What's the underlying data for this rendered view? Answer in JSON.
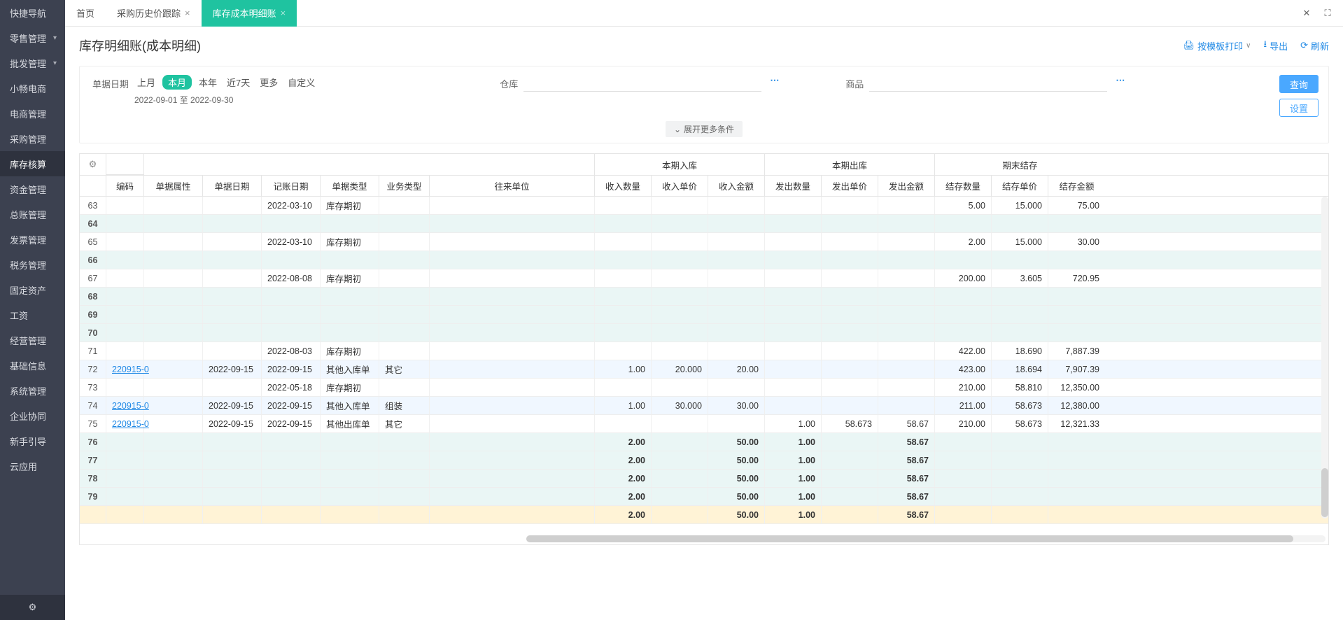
{
  "sidebar": {
    "items": [
      {
        "label": "快捷导航",
        "caret": false
      },
      {
        "label": "零售管理",
        "caret": true
      },
      {
        "label": "批发管理",
        "caret": true
      },
      {
        "label": "小畅电商",
        "caret": false
      },
      {
        "label": "电商管理",
        "caret": false
      },
      {
        "label": "采购管理",
        "caret": false
      },
      {
        "label": "库存核算",
        "caret": false,
        "active": true
      },
      {
        "label": "资金管理",
        "caret": false
      },
      {
        "label": "总账管理",
        "caret": false
      },
      {
        "label": "发票管理",
        "caret": false
      },
      {
        "label": "税务管理",
        "caret": false
      },
      {
        "label": "固定资产",
        "caret": false
      },
      {
        "label": "工资",
        "caret": false
      },
      {
        "label": "经营管理",
        "caret": false
      },
      {
        "label": "基础信息",
        "caret": false
      },
      {
        "label": "系统管理",
        "caret": false
      },
      {
        "label": "企业协同",
        "caret": false
      },
      {
        "label": "新手引导",
        "caret": false
      },
      {
        "label": "云应用",
        "caret": false
      }
    ]
  },
  "tabs": [
    {
      "label": "首页",
      "closable": false
    },
    {
      "label": "采购历史价跟踪",
      "closable": true
    },
    {
      "label": "库存成本明细账",
      "closable": true,
      "active": true
    }
  ],
  "page_title": "库存明细账(成本明细)",
  "head_actions": {
    "print": "按模板打印",
    "export": "导出",
    "refresh": "刷新"
  },
  "filters": {
    "date_label": "单据日期",
    "date_opts": [
      "上月",
      "本月",
      "本年",
      "近7天",
      "更多",
      "自定义"
    ],
    "date_opt_active": 1,
    "date_range": "2022-09-01 至 2022-09-30",
    "warehouse_label": "仓库",
    "goods_label": "商品",
    "query_btn": "查询",
    "settings_btn": "设置",
    "expand_label": "展开更多条件"
  },
  "table": {
    "group_headers": [
      "本期入库",
      "本期出库",
      "期末结存"
    ],
    "columns": [
      "编码",
      "单据属性",
      "单据日期",
      "记账日期",
      "单据类型",
      "业务类型",
      "往来单位",
      "收入数量",
      "收入单价",
      "收入金额",
      "发出数量",
      "发出单价",
      "发出金额",
      "结存数量",
      "结存单价",
      "结存金额"
    ],
    "rows": [
      {
        "idx": "63",
        "date2": "2022-03-10",
        "type": "库存期初",
        "q": "5.00",
        "p": "15.000",
        "a": "75.00"
      },
      {
        "idx": "64",
        "sum": true
      },
      {
        "idx": "65",
        "date2": "2022-03-10",
        "type": "库存期初",
        "q": "2.00",
        "p": "15.000",
        "a": "30.00"
      },
      {
        "idx": "66",
        "sum": true
      },
      {
        "idx": "67",
        "date2": "2022-08-08",
        "type": "库存期初",
        "q": "200.00",
        "p": "3.605",
        "a": "720.95"
      },
      {
        "idx": "68",
        "sum": true
      },
      {
        "idx": "69",
        "sum": true
      },
      {
        "idx": "70",
        "sum": true
      },
      {
        "idx": "71",
        "date2": "2022-08-03",
        "type": "库存期初",
        "q": "422.00",
        "p": "18.690",
        "a": "7,887.39"
      },
      {
        "idx": "72",
        "code": "220915-0",
        "date1": "2022-09-15",
        "date2": "2022-09-15",
        "type": "其他入库单",
        "biz": "其它",
        "in_q": "1.00",
        "in_p": "20.000",
        "in_a": "20.00",
        "q": "423.00",
        "p": "18.694",
        "a": "7,907.39",
        "hl": true
      },
      {
        "idx": "73",
        "date2": "2022-05-18",
        "type": "库存期初",
        "q": "210.00",
        "p": "58.810",
        "a": "12,350.00"
      },
      {
        "idx": "74",
        "code": "220915-0",
        "date1": "2022-09-15",
        "date2": "2022-09-15",
        "type": "其他入库单",
        "biz": "组装",
        "in_q": "1.00",
        "in_p": "30.000",
        "in_a": "30.00",
        "q": "211.00",
        "p": "58.673",
        "a": "12,380.00",
        "hl": true
      },
      {
        "idx": "75",
        "code": "220915-0",
        "date1": "2022-09-15",
        "date2": "2022-09-15",
        "type": "其他出库单",
        "biz": "其它",
        "out_q": "1.00",
        "out_p": "58.673",
        "out_a": "58.67",
        "q": "210.00",
        "p": "58.673",
        "a": "12,321.33"
      },
      {
        "idx": "76",
        "sum": true,
        "in_q": "2.00",
        "in_a": "50.00",
        "out_q": "1.00",
        "out_a": "58.67"
      },
      {
        "idx": "77",
        "sum": true,
        "in_q": "2.00",
        "in_a": "50.00",
        "out_q": "1.00",
        "out_a": "58.67"
      },
      {
        "idx": "78",
        "sum": true,
        "in_q": "2.00",
        "in_a": "50.00",
        "out_q": "1.00",
        "out_a": "58.67"
      },
      {
        "idx": "79",
        "sum": true,
        "in_q": "2.00",
        "in_a": "50.00",
        "out_q": "1.00",
        "out_a": "58.67"
      },
      {
        "total": true,
        "in_q": "2.00",
        "in_a": "50.00",
        "out_q": "1.00",
        "out_a": "58.67"
      }
    ]
  },
  "colors": {
    "accent": "#1fc3a0",
    "primary": "#4aa8ff",
    "link": "#1e88e5",
    "sidebar": "#3c4150"
  }
}
